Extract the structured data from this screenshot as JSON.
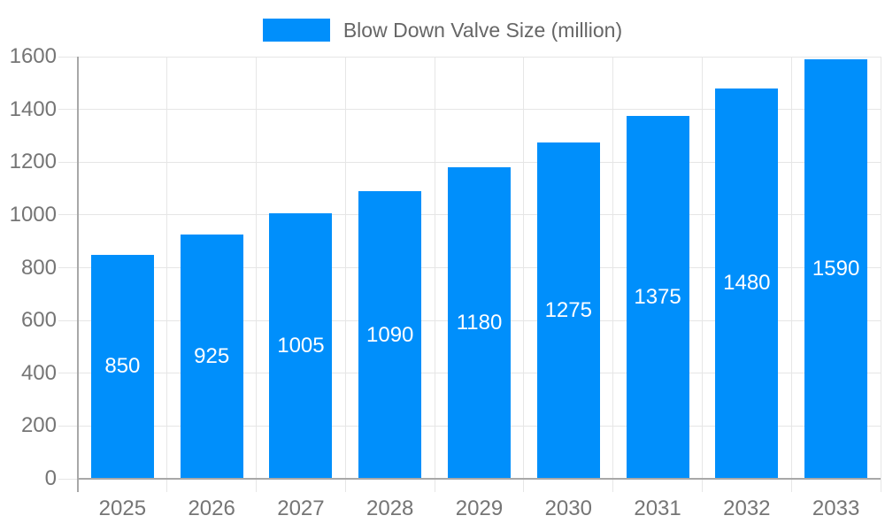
{
  "legend": {
    "label": "Blow Down Valve Size (million)"
  },
  "colors": {
    "bar": "#008FFB",
    "bar_label": "#ffffff",
    "grid_line": "#e6e6e6",
    "axis_line": "#a8a8a8",
    "tick_label": "#757575",
    "legend_label": "#666666",
    "background": "#ffffff"
  },
  "chart_data": {
    "type": "bar",
    "title": "Blow Down Valve Size (million)",
    "categories": [
      "2025",
      "2026",
      "2027",
      "2028",
      "2029",
      "2030",
      "2031",
      "2032",
      "2033"
    ],
    "series": [
      {
        "name": "Blow Down Valve Size (million)",
        "values": [
          850,
          925,
          1005,
          1090,
          1180,
          1275,
          1375,
          1480,
          1590
        ]
      }
    ],
    "bar_value_labels": [
      "850",
      "925",
      "1005",
      "1090",
      "1180",
      "1275",
      "1375",
      "1480",
      "1590"
    ],
    "xlabel": "",
    "ylabel": "",
    "ylim": [
      0,
      1600
    ],
    "yticks": [
      0,
      200,
      400,
      600,
      800,
      1000,
      1200,
      1400,
      1600
    ],
    "grid": true,
    "legend_position": "top",
    "value_labels_inside_bars": true
  }
}
